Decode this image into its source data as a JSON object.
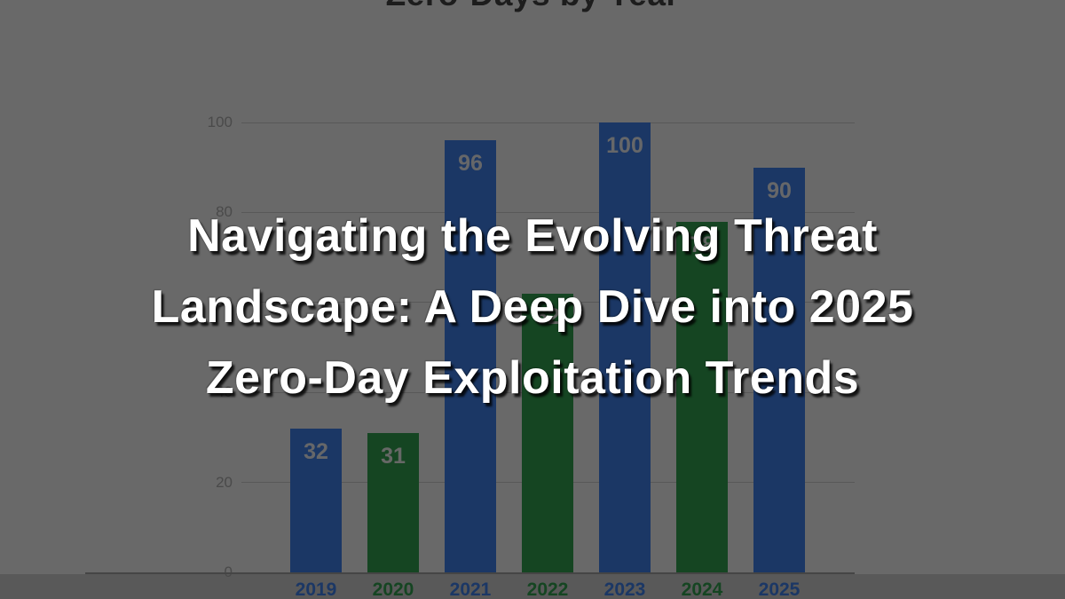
{
  "hero": {
    "line1": "Navigating the Evolving Threat",
    "line2": "Landscape: A Deep Dive into 2025",
    "line3": "Zero-Day Exploitation Trends",
    "text_color": "#ffffff",
    "overlay_color": "rgba(0,0,0,0.59)"
  },
  "chart_data": {
    "type": "bar",
    "title": "Zero-Days by Year",
    "categories": [
      "2019",
      "2020",
      "2021",
      "2022",
      "2023",
      "2024",
      "2025"
    ],
    "values": [
      32,
      31,
      96,
      62,
      100,
      78,
      90
    ],
    "value_labels": [
      "32",
      "31",
      "96",
      "62",
      "100",
      "78",
      "90"
    ],
    "bar_colors": [
      "#4285f4",
      "#34a853",
      "#4285f4",
      "#34a853",
      "#4285f4",
      "#34a853",
      "#4285f4"
    ],
    "xlabel": "",
    "ylabel": "",
    "ylim": [
      0,
      100
    ],
    "yticks": [
      0,
      20,
      40,
      60,
      80,
      100
    ],
    "grid": true,
    "legend": "none",
    "background": "#ffffff",
    "accent_blue": "#4285f4",
    "accent_green": "#34a853"
  }
}
